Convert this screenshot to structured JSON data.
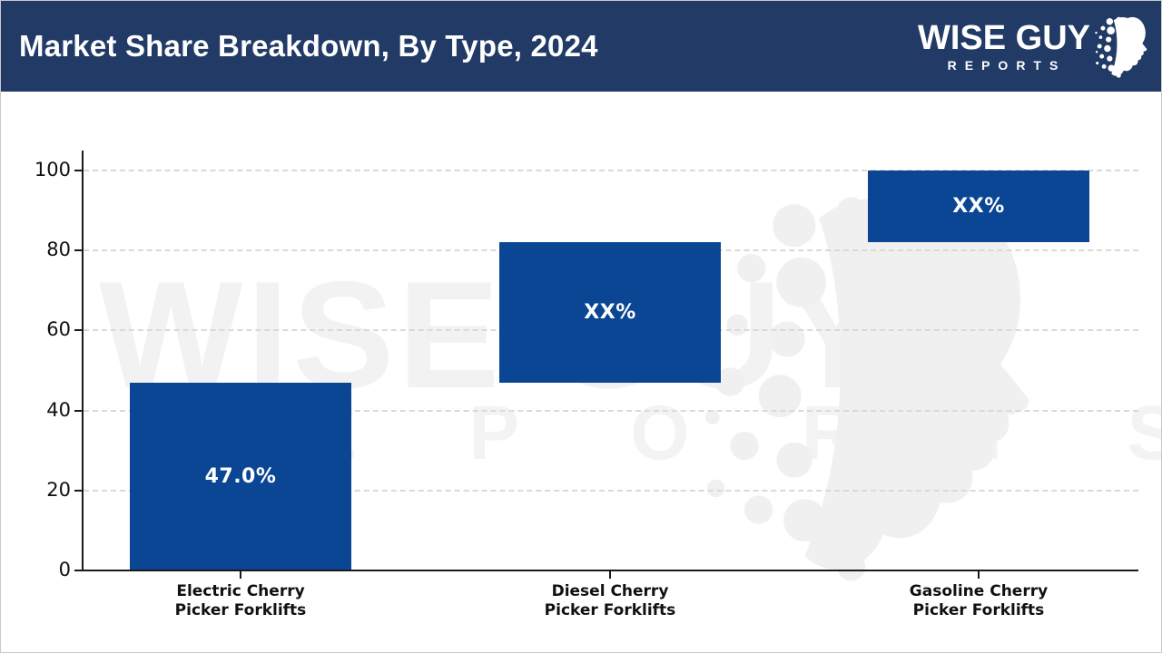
{
  "header": {
    "title": "Market Share Breakdown, By Type, 2024",
    "logo": {
      "line1": "WISE GUY",
      "line2": "REPORTS",
      "head_icon": "dotted-head-profile"
    }
  },
  "watermark": {
    "line1": "WISE GUY",
    "line2": "R E P O R T S",
    "head_icon": "dotted-head-profile"
  },
  "colors": {
    "header_bg": "#213a66",
    "bar_blue": "#0a4694",
    "grid_gray": "#d9d9d9",
    "axis_black": "#1a1a1a",
    "watermark_gray": "#f2f2f2",
    "frame_border": "#c9c9c9",
    "bar_label_white": "#ffffff"
  },
  "chart_data": {
    "type": "bar",
    "subtype": "waterfall",
    "title": "Market Share Breakdown, By Type, 2024",
    "categories": [
      "Electric Cherry\nPicker Forklifts",
      "Diesel Cherry\nPicker Forklifts",
      "Gasoline Cherry\nPicker Forklifts"
    ],
    "segments": [
      {
        "category": "Electric Cherry Picker Forklifts",
        "from": 0,
        "to": 47,
        "value": 47,
        "label": "47.0%"
      },
      {
        "category": "Diesel Cherry Picker Forklifts",
        "from": 47,
        "to": 82,
        "value": 35,
        "label": "XX%"
      },
      {
        "category": "Gasoline Cherry Picker Forklifts",
        "from": 82,
        "to": 100,
        "value": 18,
        "label": "XX%"
      }
    ],
    "yticks": [
      0,
      20,
      40,
      60,
      80,
      100
    ],
    "ylim": [
      0,
      100
    ],
    "xlabel": "",
    "ylabel": "",
    "grid": "horizontal dashed",
    "legend": "none",
    "bar_color": "#0a4694",
    "value_label_color": "#ffffff"
  }
}
